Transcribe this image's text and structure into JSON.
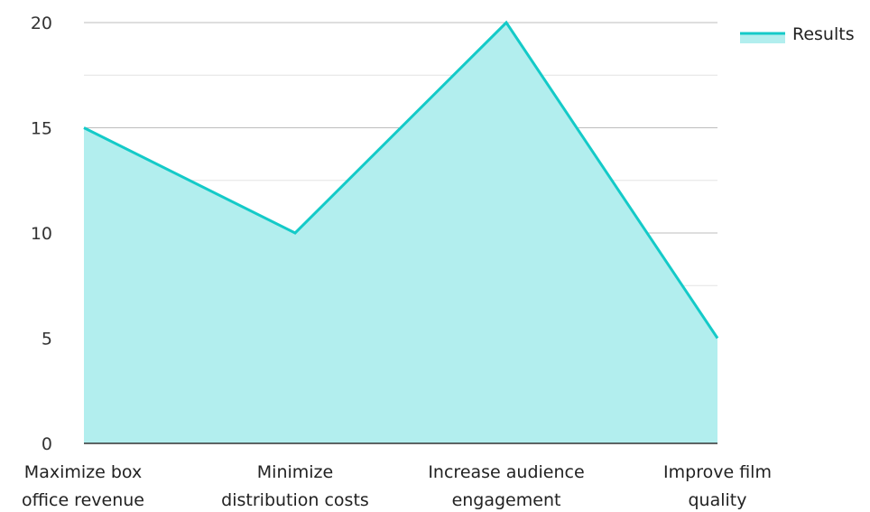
{
  "chart_data": {
    "type": "area",
    "categories": [
      [
        "Maximize box",
        "office revenue"
      ],
      [
        "Minimize",
        "distribution costs"
      ],
      [
        "Increase audience",
        "engagement"
      ],
      [
        "Improve film",
        "quality"
      ]
    ],
    "series": [
      {
        "name": "Results",
        "values": [
          15,
          10,
          20,
          5
        ],
        "color": "#14cac8",
        "fill": "#b2eeee"
      }
    ],
    "ylim": [
      0,
      20
    ],
    "yticks": [
      0,
      5,
      10,
      15,
      20
    ],
    "grid": true,
    "legend": "top-right"
  }
}
